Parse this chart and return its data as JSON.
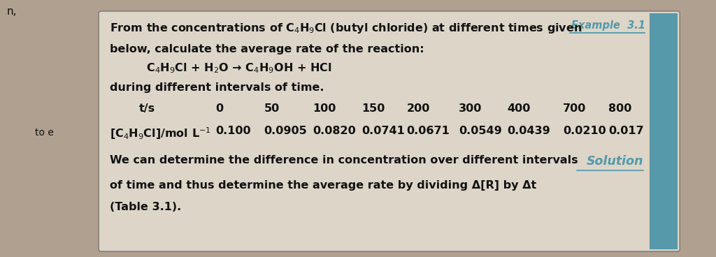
{
  "bg_color": "#b0a090",
  "box_color": "#ddd5c8",
  "box_edge_color": "#777777",
  "sidebar_color": "#5599aa",
  "example_color": "#5599aa",
  "solution_color": "#5599aa",
  "main_text_color": "#111111",
  "line1": "From the concentrations of C$_4$H$_9$Cl (butyl chloride) at different times given",
  "line2": "below, calculate the average rate of the reaction:",
  "reaction": "    C$_4$H$_9$Cl + H$_2$O → C$_4$H$_9$OH + HCl",
  "line3": "during different intervals of time.",
  "table_header": [
    "t/s",
    "0",
    "50",
    "100",
    "150",
    "200",
    "300",
    "400",
    "700",
    "800"
  ],
  "table_row_label": "[C$_4$H$_9$Cl]/mol L$^{-1}$",
  "table_values": [
    "0.100",
    "0.0905",
    "0.0820",
    "0.0741",
    "0.0671",
    "0.0549",
    "0.0439",
    "0.0210",
    "0.017"
  ],
  "sol_line1": "We can determine the difference in concentration over different intervals",
  "sol_line2": "of time and thus determine the average rate by dividing Δ[R] by Δt",
  "sol_line3": "(Table 3.1).",
  "example_label": "Example  3.1",
  "solution_word": "Solution",
  "corner_text": "n,",
  "side_text": "to e"
}
